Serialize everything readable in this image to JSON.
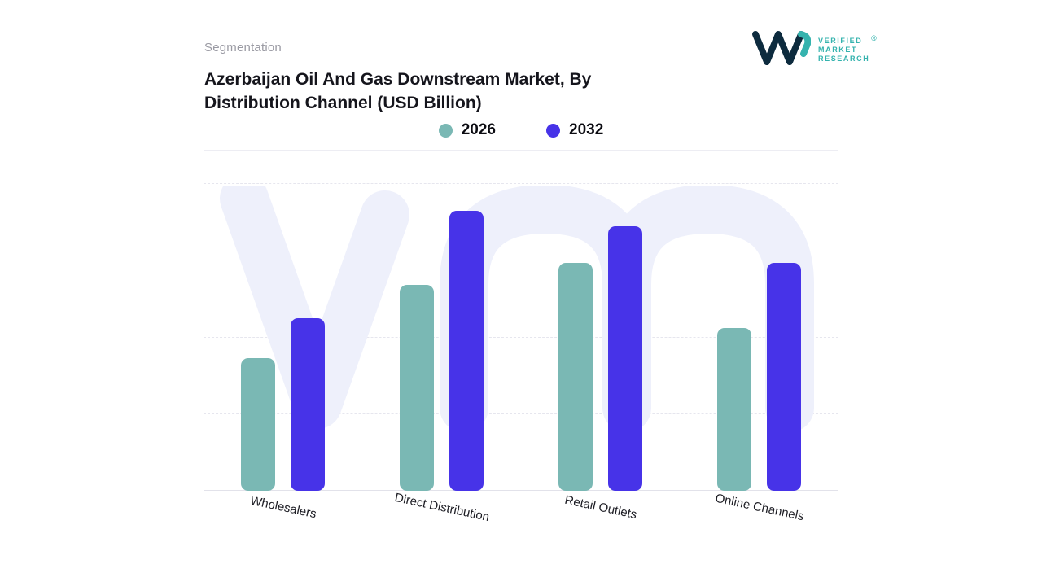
{
  "header": {
    "eyebrow": "Segmentation",
    "logo": {
      "brand_lines": [
        "VERIFIED",
        "MARKET",
        "RESEARCH"
      ],
      "registered_mark": "®",
      "navy": "#0d2b3e",
      "teal": "#35b3ae"
    }
  },
  "chart_data": {
    "type": "bar",
    "title": "Azerbaijan Oil And Gas Downstream Market, By Distribution Channel (USD Billion)",
    "categories": [
      "Wholesalers",
      "Direct Distribution",
      "Retail Outlets",
      "Online Channels"
    ],
    "series": [
      {
        "name": "2026",
        "color": "#7ab8b4",
        "values": [
          43,
          67,
          74,
          53
        ]
      },
      {
        "name": "2032",
        "color": "#4733e8",
        "values": [
          56,
          91,
          86,
          74
        ]
      }
    ],
    "xlabel": "",
    "ylabel": "",
    "ylim": [
      0,
      100
    ],
    "grid": "horizontal-dashed",
    "legend_position": "top-center",
    "watermark_color": "#eef0fb"
  }
}
